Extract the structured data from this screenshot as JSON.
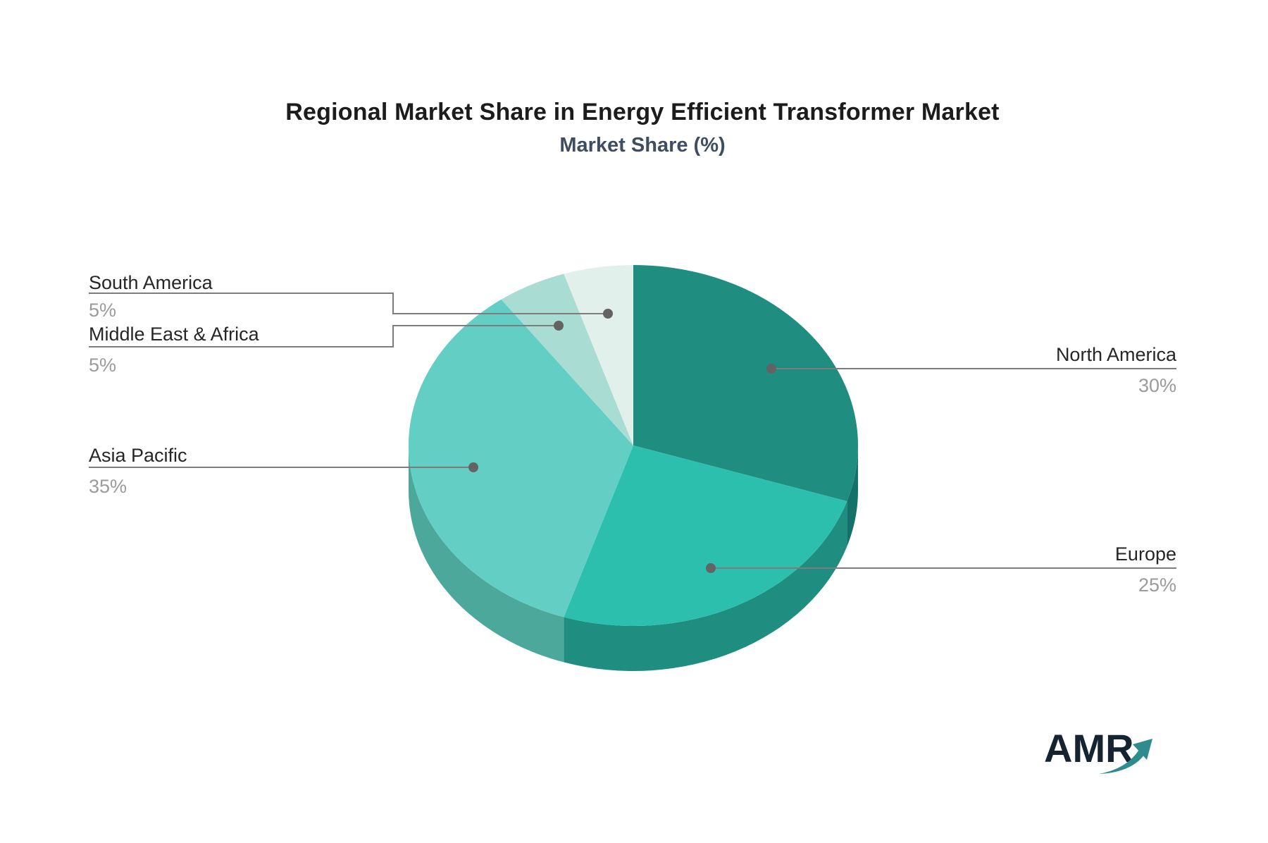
{
  "title": "Regional Market Share in Energy Efficient Transformer Market",
  "subtitle": "Market Share (%)",
  "chart_data": {
    "type": "pie",
    "style": "3d",
    "title": "Regional Market Share in Energy Efficient Transformer Market",
    "subtitle": "Market Share (%)",
    "unit": "%",
    "start_angle_deg": 0,
    "direction": "clockwise",
    "label_position": "outside-callout",
    "legend": "none",
    "slices": [
      {
        "label": "North America",
        "value": 30,
        "display": "30%",
        "color": "#1f8e81",
        "side_color": "#15726b"
      },
      {
        "label": "Europe",
        "value": 25,
        "display": "25%",
        "color": "#2dbfae",
        "side_color": "#1f8e80"
      },
      {
        "label": "Asia Pacific",
        "value": 35,
        "display": "35%",
        "color": "#63cec3",
        "side_color": "#4ba89b"
      },
      {
        "label": "Middle East & Africa",
        "value": 5,
        "display": "5%",
        "color": "#a9dcd2",
        "side_color": "#8cc7bc"
      },
      {
        "label": "South America",
        "value": 5,
        "display": "5%",
        "color": "#e2f0ec",
        "side_color": "#c4dcd6"
      }
    ]
  },
  "logo": {
    "text": "AMR",
    "text_color": "#152430",
    "arrow_color": "#2e8b8e"
  },
  "colors": {
    "background": "#ffffff",
    "title": "#1c1c1c",
    "subtitle": "#3e4e60",
    "label": "#262626",
    "value": "#9b9b9b",
    "line": "#7d7d7d",
    "dot": "#636363"
  }
}
